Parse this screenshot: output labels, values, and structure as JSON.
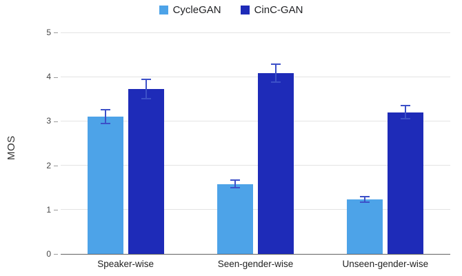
{
  "chart_data": {
    "type": "bar",
    "title": "",
    "xlabel": "",
    "ylabel": "MOS",
    "ylim": [
      0,
      5
    ],
    "ytick_step": 1,
    "grid": true,
    "legend_position": "top",
    "categories": [
      "Speaker-wise",
      "Seen-gender-wise",
      "Unseen-gender-wise"
    ],
    "series": [
      {
        "name": "CycleGAN",
        "color": "#4da3e8",
        "values": [
          3.1,
          1.58,
          1.23
        ],
        "errors": [
          0.17,
          0.1,
          0.08
        ]
      },
      {
        "name": "CinC-GAN",
        "color": "#1e2bb8",
        "values": [
          3.72,
          4.08,
          3.2
        ],
        "errors": [
          0.23,
          0.22,
          0.17
        ]
      }
    ],
    "error_bar_color": "#3c50c8",
    "axis_text_color": "#333333",
    "gridline_color": "#e3e3e3",
    "baseline_color": "#616161",
    "background": "#ffffff"
  }
}
